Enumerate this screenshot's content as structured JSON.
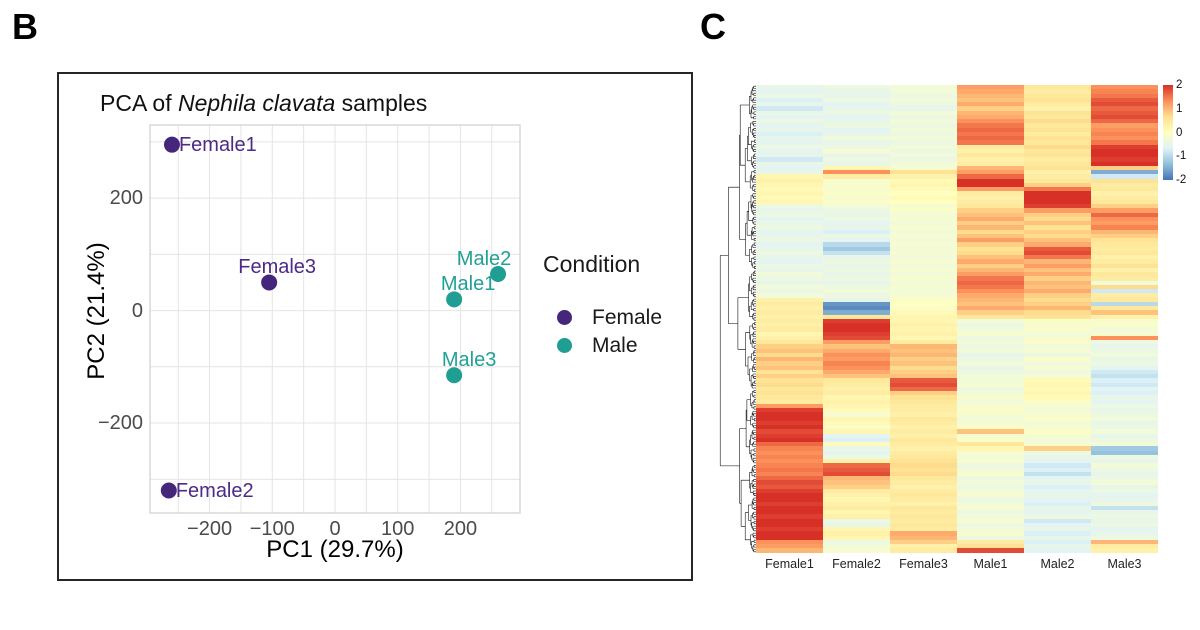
{
  "panels": {
    "b": {
      "label": "B"
    },
    "c": {
      "label": "C"
    }
  },
  "chart_data": [
    {
      "type": "scatter",
      "name": "pca-plot",
      "title": "PCA of Nephila clavata samples",
      "title_parts": {
        "prefix": "PCA of ",
        "italic": "Nephila clavata",
        "suffix": " samples"
      },
      "xlabel": "PC1 (29.7%)",
      "ylabel": "PC2 (21.4%)",
      "xlim": [
        -295,
        295
      ],
      "ylim": [
        -360,
        330
      ],
      "x_ticks": [
        -200,
        -100,
        0,
        100,
        200
      ],
      "y_ticks": [
        -200,
        0,
        200
      ],
      "grid": true,
      "grid_x_step": 50,
      "grid_y_step": 100,
      "legend": {
        "title": "Condition",
        "position": "right",
        "entries": [
          {
            "label": "Female",
            "color": "#44277b"
          },
          {
            "label": "Male",
            "color": "#1f9e93"
          }
        ]
      },
      "series": [
        {
          "name": "Female",
          "color": "#44277b",
          "label_color": "#4c2a85",
          "points": [
            {
              "label": "Female1",
              "x": -260,
              "y": 295,
              "label_side": "right"
            },
            {
              "label": "Female2",
              "x": -265,
              "y": -320,
              "label_side": "right"
            },
            {
              "label": "Female3",
              "x": -105,
              "y": 50,
              "label_side": "above",
              "label_dx": 8
            }
          ]
        },
        {
          "name": "Male",
          "color": "#1f9e93",
          "label_color": "#21a096",
          "points": [
            {
              "label": "Male1",
              "x": 190,
              "y": 20,
              "label_side": "above",
              "label_dx": 14
            },
            {
              "label": "Male2",
              "x": 260,
              "y": 65,
              "label_side": "above",
              "label_dx": -14
            },
            {
              "label": "Male3",
              "x": 190,
              "y": -115,
              "label_side": "above",
              "label_dx": 15
            }
          ]
        }
      ]
    },
    {
      "type": "heatmap",
      "name": "expression-heatmap",
      "columns": [
        "Female1",
        "Female2",
        "Female3",
        "Male1",
        "Male2",
        "Male3"
      ],
      "value_range": [
        -2,
        2
      ],
      "colorbar_ticks": [
        2,
        1,
        0,
        -1,
        -2
      ],
      "colormap": "RdYlBu_r",
      "colormap_stops": [
        "#4575b4",
        "#91bfdb",
        "#e0f3f8",
        "#ffffbf",
        "#fee090",
        "#fc8d59",
        "#d73027"
      ],
      "row_dendrogram": true,
      "rows": [
        [
          -0.5,
          -0.4,
          -0.3,
          1.2,
          0.5,
          1.3
        ],
        [
          -0.6,
          -0.5,
          -0.3,
          1.1,
          0.4,
          1.4
        ],
        [
          -0.4,
          -0.5,
          -0.4,
          1.0,
          0.5,
          1.5
        ],
        [
          -0.7,
          -0.4,
          -0.3,
          0.9,
          0.6,
          1.7
        ],
        [
          -0.5,
          -0.6,
          -0.4,
          1.1,
          0.4,
          1.8
        ],
        [
          -0.8,
          -0.5,
          -0.5,
          0.8,
          0.3,
          1.6
        ],
        [
          -0.5,
          -0.4,
          -0.3,
          1.0,
          0.6,
          1.7
        ],
        [
          -0.6,
          -0.6,
          -0.4,
          1.1,
          0.5,
          1.8
        ],
        [
          -0.4,
          -0.5,
          -0.3,
          1.3,
          0.7,
          1.6
        ],
        [
          -0.6,
          -0.4,
          -0.4,
          1.5,
          0.5,
          1.2
        ],
        [
          -0.5,
          -0.6,
          -0.3,
          1.6,
          0.6,
          1.3
        ],
        [
          -0.7,
          -0.5,
          -0.4,
          1.5,
          0.4,
          1.4
        ],
        [
          -0.5,
          -0.3,
          -0.3,
          1.6,
          0.6,
          1.3
        ],
        [
          -0.6,
          -0.5,
          -0.4,
          1.5,
          0.5,
          1.5
        ],
        [
          -0.4,
          -0.4,
          -0.3,
          0.4,
          0.7,
          1.9
        ],
        [
          -0.6,
          -0.2,
          -0.4,
          0.3,
          0.5,
          2.0
        ],
        [
          -0.5,
          -0.5,
          -0.3,
          0.5,
          0.6,
          2.0
        ],
        [
          -0.8,
          -0.4,
          -0.4,
          0.3,
          0.4,
          1.9
        ],
        [
          -0.5,
          -0.5,
          -0.3,
          0.4,
          0.5,
          2.0
        ],
        [
          -0.6,
          0.2,
          -0.2,
          1.0,
          0.6,
          0.8
        ],
        [
          -0.5,
          1.3,
          0.6,
          1.2,
          0.3,
          -1.5
        ],
        [
          0.2,
          0.4,
          0.3,
          1.6,
          0.4,
          -0.8
        ],
        [
          0.3,
          -0.2,
          0.1,
          2.0,
          0.5,
          0.6
        ],
        [
          0.2,
          -0.1,
          0.2,
          2.0,
          0.8,
          0.4
        ],
        [
          0.1,
          -0.2,
          0.1,
          1.2,
          1.5,
          0.5
        ],
        [
          0.2,
          -0.1,
          0.0,
          0.4,
          2.0,
          0.3
        ],
        [
          0.1,
          -0.2,
          0.1,
          0.3,
          2.0,
          0.4
        ],
        [
          0.2,
          -0.1,
          0.0,
          0.4,
          2.0,
          0.5
        ],
        [
          -0.4,
          -0.3,
          -0.2,
          0.5,
          1.9,
          0.8
        ],
        [
          -0.5,
          -0.4,
          -0.1,
          0.8,
          1.2,
          1.2
        ],
        [
          -0.4,
          -0.5,
          -0.3,
          0.9,
          0.8,
          1.6
        ],
        [
          -0.6,
          -0.4,
          -0.2,
          1.1,
          0.7,
          1.3
        ],
        [
          -0.5,
          -0.6,
          -0.3,
          0.8,
          0.9,
          1.2
        ],
        [
          -0.4,
          -0.5,
          -0.2,
          1.0,
          0.6,
          1.4
        ],
        [
          -0.6,
          -0.7,
          -0.3,
          0.7,
          0.8,
          1.0
        ],
        [
          -0.5,
          -0.4,
          -0.2,
          0.9,
          0.7,
          0.8
        ],
        [
          -0.4,
          -0.6,
          -0.3,
          1.2,
          0.9,
          0.6
        ],
        [
          -0.6,
          -1.0,
          -0.2,
          0.8,
          1.1,
          0.5
        ],
        [
          -0.5,
          -1.2,
          -0.3,
          0.6,
          1.7,
          0.4
        ],
        [
          -0.4,
          -0.9,
          -0.2,
          0.7,
          1.8,
          0.5
        ],
        [
          -0.5,
          -0.5,
          -0.3,
          0.9,
          1.5,
          0.3
        ],
        [
          -0.6,
          -0.4,
          -0.2,
          1.1,
          1.0,
          0.4
        ],
        [
          -0.4,
          -0.5,
          -0.3,
          0.8,
          1.2,
          0.6
        ],
        [
          -0.5,
          -0.4,
          -0.2,
          1.0,
          0.9,
          0.3
        ],
        [
          -0.3,
          -0.5,
          -0.3,
          1.2,
          1.1,
          0.5
        ],
        [
          -0.4,
          -0.4,
          -0.2,
          1.5,
          0.8,
          0.4
        ],
        [
          -0.5,
          -0.5,
          -0.3,
          1.6,
          1.0,
          -0.3
        ],
        [
          -0.3,
          -0.4,
          -0.2,
          1.5,
          0.9,
          0.7
        ],
        [
          -0.4,
          -0.3,
          -0.3,
          1.3,
          1.1,
          -0.8
        ],
        [
          -0.3,
          -0.4,
          -0.2,
          1.1,
          0.8,
          0.4
        ],
        [
          0.3,
          -0.5,
          -0.1,
          1.0,
          0.7,
          0.5
        ],
        [
          0.4,
          -1.7,
          0.0,
          0.9,
          0.8,
          -1.0
        ],
        [
          0.3,
          -1.8,
          -0.1,
          1.1,
          1.0,
          0.5
        ],
        [
          0.4,
          -1.5,
          0.1,
          0.8,
          0.7,
          0.9
        ],
        [
          0.3,
          0.5,
          0.2,
          0.5,
          0.6,
          0.3
        ],
        [
          0.4,
          1.9,
          0.2,
          -0.3,
          -0.1,
          -0.2
        ],
        [
          0.3,
          2.0,
          0.3,
          -0.4,
          -0.2,
          -0.1
        ],
        [
          0.4,
          2.0,
          0.2,
          -0.3,
          -0.1,
          -0.3
        ],
        [
          0.2,
          1.9,
          0.3,
          -0.2,
          -0.3,
          -0.2
        ],
        [
          0.3,
          1.8,
          0.2,
          -0.4,
          -0.2,
          1.3
        ],
        [
          0.5,
          1.2,
          0.4,
          -0.3,
          -0.1,
          -0.4
        ],
        [
          0.8,
          0.9,
          1.0,
          -0.4,
          -0.3,
          -0.5
        ],
        [
          0.9,
          1.1,
          0.9,
          -0.3,
          -0.2,
          -0.4
        ],
        [
          0.7,
          1.3,
          1.0,
          -0.5,
          -0.4,
          -0.3
        ],
        [
          1.0,
          1.2,
          0.8,
          -0.4,
          -0.1,
          -0.5
        ],
        [
          0.8,
          1.4,
          0.9,
          -0.3,
          -0.3,
          -0.4
        ],
        [
          0.9,
          1.3,
          0.7,
          -0.5,
          -0.2,
          -0.6
        ],
        [
          0.6,
          1.1,
          0.8,
          -0.4,
          -0.4,
          -0.8
        ],
        [
          0.8,
          0.9,
          0.9,
          -0.3,
          -0.2,
          -0.9
        ],
        [
          0.6,
          0.5,
          1.7,
          -0.3,
          0.1,
          -0.7
        ],
        [
          0.7,
          0.4,
          1.8,
          -0.2,
          0.2,
          -0.8
        ],
        [
          0.5,
          0.3,
          1.6,
          -0.4,
          0.1,
          -0.6
        ],
        [
          0.6,
          0.4,
          0.8,
          -0.3,
          0.2,
          -0.7
        ],
        [
          0.5,
          0.2,
          0.6,
          -0.2,
          0.1,
          -0.5
        ],
        [
          0.4,
          0.3,
          0.5,
          -0.3,
          -0.1,
          -0.6
        ],
        [
          1.2,
          0.2,
          0.4,
          -0.2,
          -0.2,
          -0.4
        ],
        [
          1.9,
          0.1,
          0.4,
          -0.1,
          -0.3,
          -0.5
        ],
        [
          2.0,
          -0.2,
          0.3,
          -0.2,
          -0.2,
          -0.4
        ],
        [
          2.0,
          0.2,
          0.5,
          -0.3,
          -0.1,
          -0.3
        ],
        [
          1.9,
          0.1,
          0.4,
          -0.2,
          -0.3,
          -0.5
        ],
        [
          2.0,
          -0.1,
          0.3,
          -0.1,
          -0.2,
          -0.4
        ],
        [
          1.8,
          0.2,
          0.4,
          0.9,
          -0.1,
          -0.3
        ],
        [
          1.9,
          -0.6,
          0.3,
          -0.2,
          -0.2,
          -0.5
        ],
        [
          2.0,
          -0.7,
          0.5,
          -0.1,
          -0.3,
          -0.4
        ],
        [
          1.6,
          0.1,
          0.4,
          0.5,
          -0.2,
          -0.3
        ],
        [
          1.4,
          -0.5,
          0.3,
          0.2,
          0.8,
          -1.2
        ],
        [
          1.3,
          -0.6,
          0.4,
          -0.2,
          -0.4,
          -1.3
        ],
        [
          1.4,
          -0.4,
          0.5,
          -0.3,
          -0.5,
          -0.4
        ],
        [
          1.3,
          0.3,
          0.6,
          -0.2,
          -0.6,
          -0.5
        ],
        [
          1.4,
          1.6,
          0.7,
          -0.4,
          -0.8,
          -0.3
        ],
        [
          1.5,
          1.7,
          0.6,
          -0.3,
          -0.7,
          -0.4
        ],
        [
          1.4,
          1.8,
          0.7,
          -0.2,
          -0.9,
          -0.5
        ],
        [
          1.6,
          1.0,
          0.5,
          -0.4,
          -0.6,
          -0.4
        ],
        [
          1.8,
          0.9,
          0.4,
          -0.3,
          -0.5,
          -0.3
        ],
        [
          1.7,
          0.8,
          0.3,
          -0.4,
          -0.7,
          -0.5
        ],
        [
          1.9,
          0.4,
          0.4,
          -0.3,
          -0.6,
          -0.4
        ],
        [
          2.0,
          0.3,
          0.5,
          -0.2,
          -0.5,
          -0.6
        ],
        [
          2.0,
          0.2,
          0.4,
          -0.4,
          -0.6,
          -0.5
        ],
        [
          1.9,
          0.3,
          0.3,
          -0.3,
          -0.7,
          -0.4
        ],
        [
          2.0,
          0.4,
          0.5,
          -0.2,
          -0.5,
          -0.9
        ],
        [
          2.0,
          0.2,
          0.4,
          -0.4,
          -0.6,
          -0.5
        ],
        [
          1.9,
          0.3,
          0.5,
          -0.3,
          -0.4,
          -0.4
        ],
        [
          2.0,
          -0.4,
          0.4,
          -0.2,
          -0.8,
          -0.5
        ],
        [
          2.0,
          -0.5,
          0.5,
          -0.4,
          -0.6,
          -0.4
        ],
        [
          1.9,
          0.2,
          0.4,
          -0.3,
          -0.5,
          -0.6
        ],
        [
          2.0,
          0.3,
          1.1,
          -0.2,
          -0.7,
          -0.5
        ],
        [
          2.0,
          0.2,
          1.0,
          -0.4,
          -0.5,
          -0.4
        ],
        [
          1.3,
          -0.4,
          0.8,
          0.4,
          -0.7,
          1.0
        ],
        [
          1.2,
          -0.3,
          0.3,
          0.6,
          -0.5,
          0.4
        ],
        [
          1.0,
          -0.2,
          0.4,
          1.8,
          -0.6,
          0.3
        ]
      ]
    }
  ]
}
